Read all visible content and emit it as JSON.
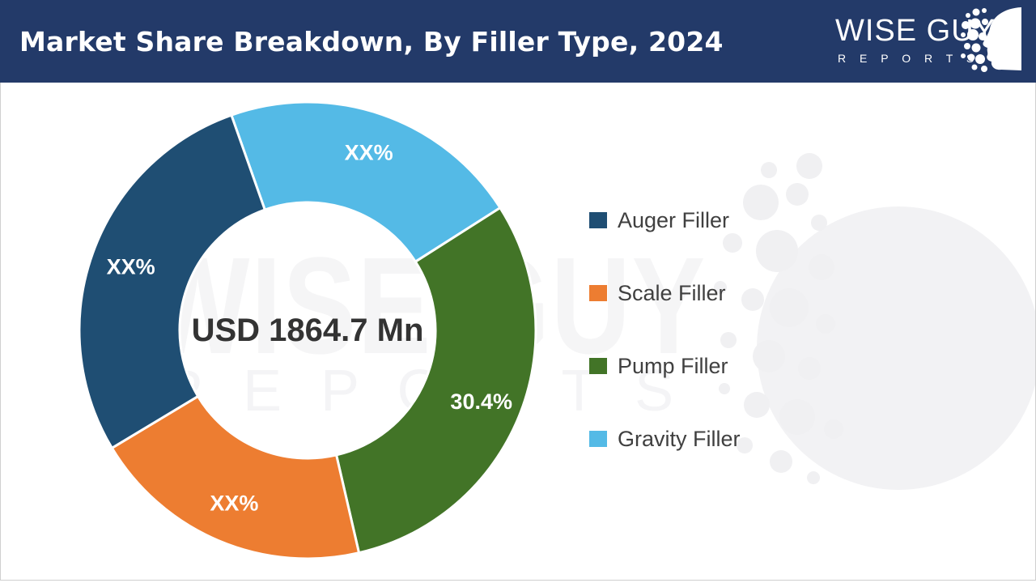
{
  "header": {
    "title": "Market Share Breakdown, By Filler Type, 2024",
    "bg_color": "#233A69",
    "logo": {
      "line1": "WISE GUY",
      "line2": "R E P O R T S"
    }
  },
  "watermark": {
    "line1": "WISE GUY",
    "line2": "R E P O R T S"
  },
  "chart_data": {
    "type": "pie",
    "subtype": "donut",
    "title": "Market Share Breakdown, By Filler Type, 2024",
    "center_label": "USD 1864.7 Mn",
    "unit": "percent market share",
    "start_angle_deg": -19.5,
    "segments": [
      {
        "name": "Gravity Filler",
        "label": "XX%",
        "value": 21.4,
        "value_masked": true,
        "color": "#54BAE6"
      },
      {
        "name": "Pump Filler",
        "label": "30.4%",
        "value": 30.4,
        "value_masked": false,
        "color": "#427427"
      },
      {
        "name": "Scale Filler",
        "label": "XX%",
        "value": 20.0,
        "value_masked": true,
        "color": "#ED7D31"
      },
      {
        "name": "Auger Filler",
        "label": "XX%",
        "value": 28.2,
        "value_masked": true,
        "color": "#1F4E73"
      }
    ],
    "legend": [
      {
        "label": "Auger Filler",
        "color": "#1F4E73"
      },
      {
        "label": "Scale Filler",
        "color": "#ED7D31"
      },
      {
        "label": "Pump Filler",
        "color": "#427427"
      },
      {
        "label": "Gravity Filler",
        "color": "#54BAE6"
      }
    ],
    "legend_position": "right"
  }
}
